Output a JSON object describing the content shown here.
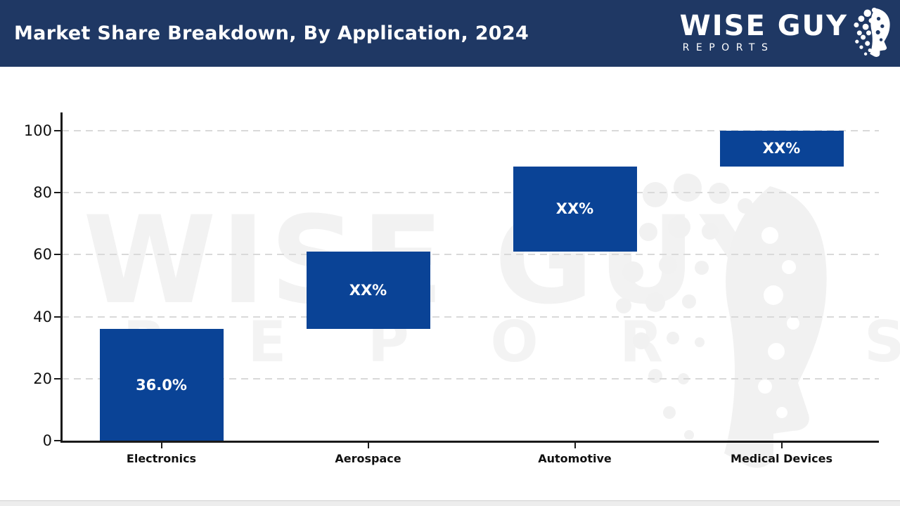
{
  "header": {
    "title": "Market Share Breakdown, By Application, 2024",
    "bg_color": "#1f3864",
    "logo": {
      "line1": "WISE GUY",
      "line2": "REPORTS"
    }
  },
  "watermark": {
    "line1": "WISE GUY",
    "line2": "R E P O R T S"
  },
  "chart_data": {
    "type": "bar",
    "subtype": "waterfall",
    "title": "Market Share Breakdown, By Application, 2024",
    "categories": [
      "Electronics",
      "Aerospace",
      "Automotive",
      "Medical Devices"
    ],
    "segments": [
      {
        "category": "Electronics",
        "start": 0,
        "end": 36,
        "label": "36.0%"
      },
      {
        "category": "Aerospace",
        "start": 36,
        "end": 61,
        "label": "XX%"
      },
      {
        "category": "Automotive",
        "start": 61,
        "end": 88.5,
        "label": "XX%"
      },
      {
        "category": "Medical Devices",
        "start": 88.5,
        "end": 100,
        "label": "XX%"
      }
    ],
    "yticks": [
      0,
      20,
      40,
      60,
      80,
      100
    ],
    "ylim": [
      0,
      106
    ],
    "xlabel": "",
    "ylabel": "",
    "bar_color": "#0a4396",
    "grid": "horizontal-dashed",
    "gridline_color": "#d9d9d9",
    "axis_color": "#1a1a1a",
    "legend": null
  }
}
